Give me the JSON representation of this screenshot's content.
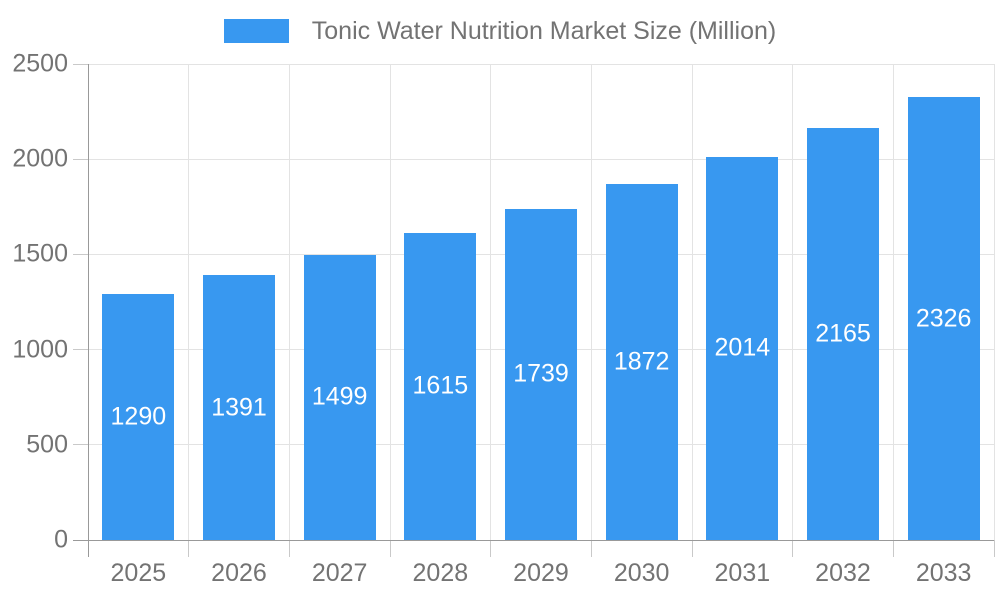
{
  "legend": {
    "label": "Tonic Water Nutrition Market Size (Million)"
  },
  "colors": {
    "bar": "#3898F0",
    "grid": "#E3E3E3",
    "tick": "#C9C9C9",
    "axis": "#999999",
    "text": "#737373",
    "value_label": "#FFFFFF",
    "background": "#FFFFFF"
  },
  "chart_data": {
    "type": "bar",
    "title": "Tonic Water Nutrition Market Size (Million)",
    "categories": [
      "2025",
      "2026",
      "2027",
      "2028",
      "2029",
      "2030",
      "2031",
      "2032",
      "2033"
    ],
    "values": [
      1290,
      1391,
      1499,
      1615,
      1739,
      1872,
      2014,
      2165,
      2326
    ],
    "xlabel": "",
    "ylabel": "",
    "ylim": [
      0,
      2500
    ],
    "yticks": [
      0,
      500,
      1000,
      1500,
      2000,
      2500
    ],
    "grid": true,
    "legend_position": "top-center",
    "value_label_position": "inside-center"
  }
}
